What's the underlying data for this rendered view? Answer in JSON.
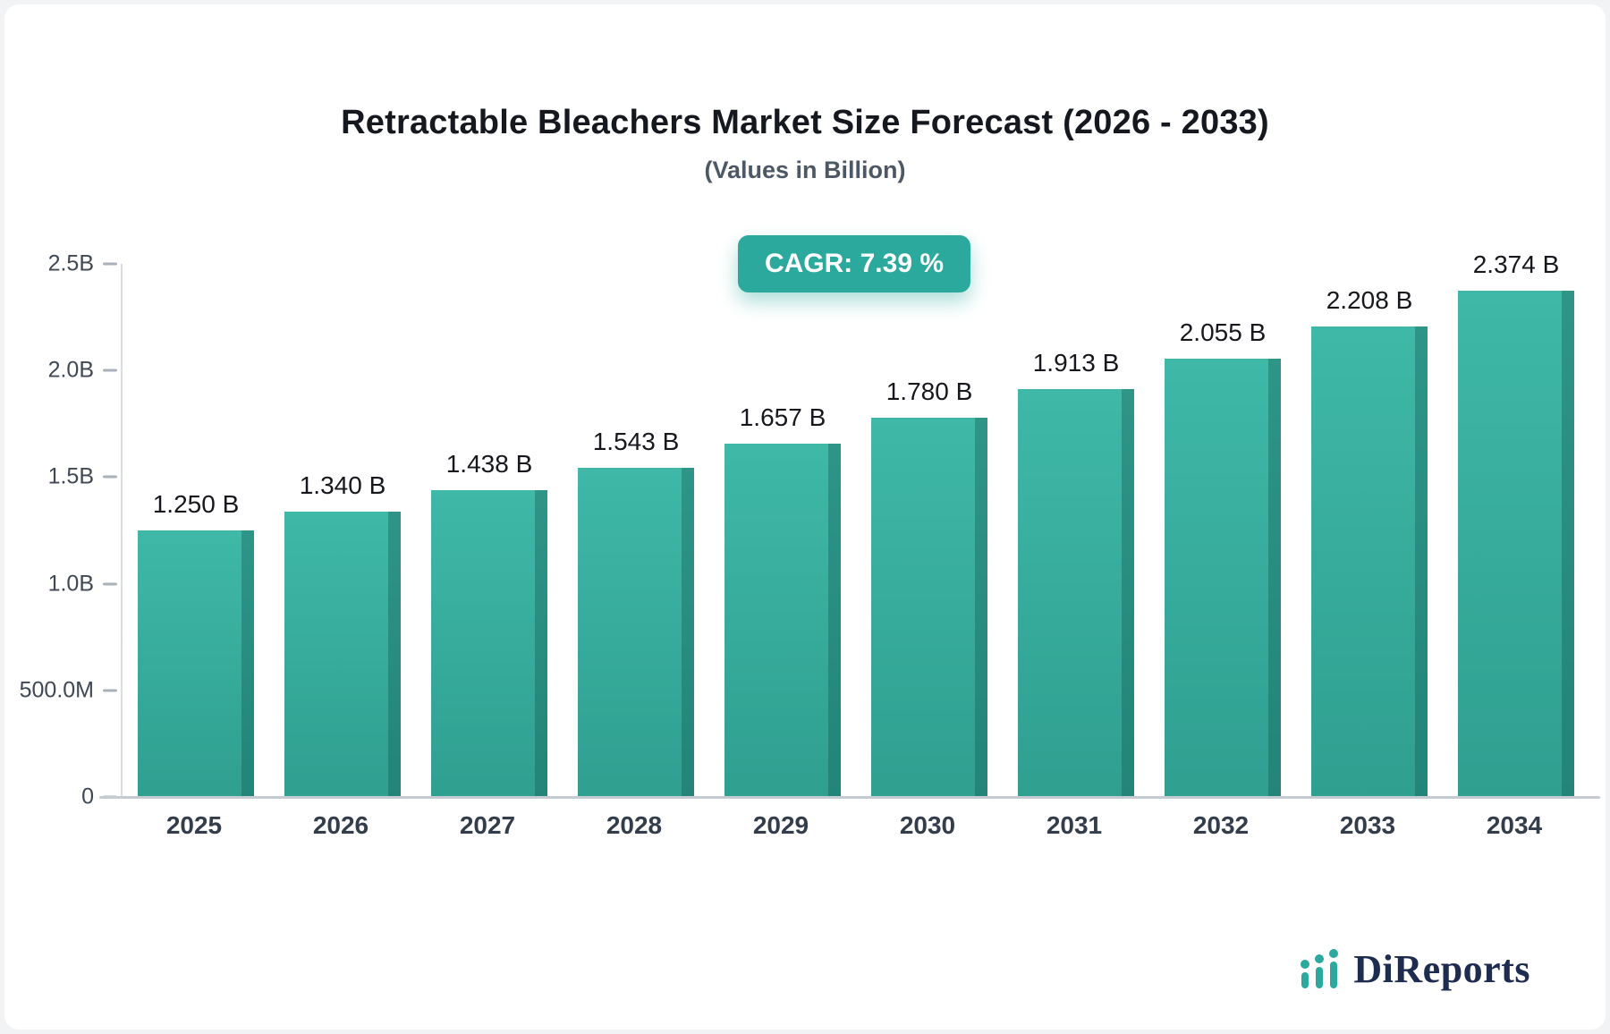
{
  "chart_data": {
    "type": "bar",
    "title": "Retractable Bleachers Market Size Forecast (2026 - 2033)",
    "subtitle": "(Values in Billion)",
    "categories": [
      "2025",
      "2026",
      "2027",
      "2028",
      "2029",
      "2030",
      "2031",
      "2032",
      "2033",
      "2034"
    ],
    "values": [
      1.25,
      1.34,
      1.438,
      1.543,
      1.657,
      1.78,
      1.913,
      2.055,
      2.208,
      2.374
    ],
    "value_labels": [
      "1.250 B",
      "1.340 B",
      "1.438 B",
      "1.543 B",
      "1.657 B",
      "1.780 B",
      "1.913 B",
      "2.055 B",
      "2.208 B",
      "2.374 B"
    ],
    "ylim": [
      0,
      2.5
    ],
    "y_ticks": [
      {
        "value": 0.0,
        "label": "0"
      },
      {
        "value": 0.5,
        "label": "500.0M"
      },
      {
        "value": 1.0,
        "label": "1.0B"
      },
      {
        "value": 1.5,
        "label": "1.5B"
      },
      {
        "value": 2.0,
        "label": "2.0B"
      },
      {
        "value": 2.5,
        "label": "2.5B"
      }
    ],
    "xlabel": "",
    "ylabel": "",
    "grid": false,
    "legend": false
  },
  "cagr": {
    "label": "CAGR: 7.39 %"
  },
  "logo": {
    "text": "DiReports",
    "icon": "bar-chart-icon"
  },
  "colors": {
    "title": "#15181f",
    "subtitle": "#4d5866",
    "axis_label": "#3f4854",
    "bar_top": "#3fb8a8",
    "bar_bottom": "#2f9f90",
    "badge_bg": "#2aa99c",
    "logo_text": "#1e2c4f",
    "background": "#ffffff"
  }
}
